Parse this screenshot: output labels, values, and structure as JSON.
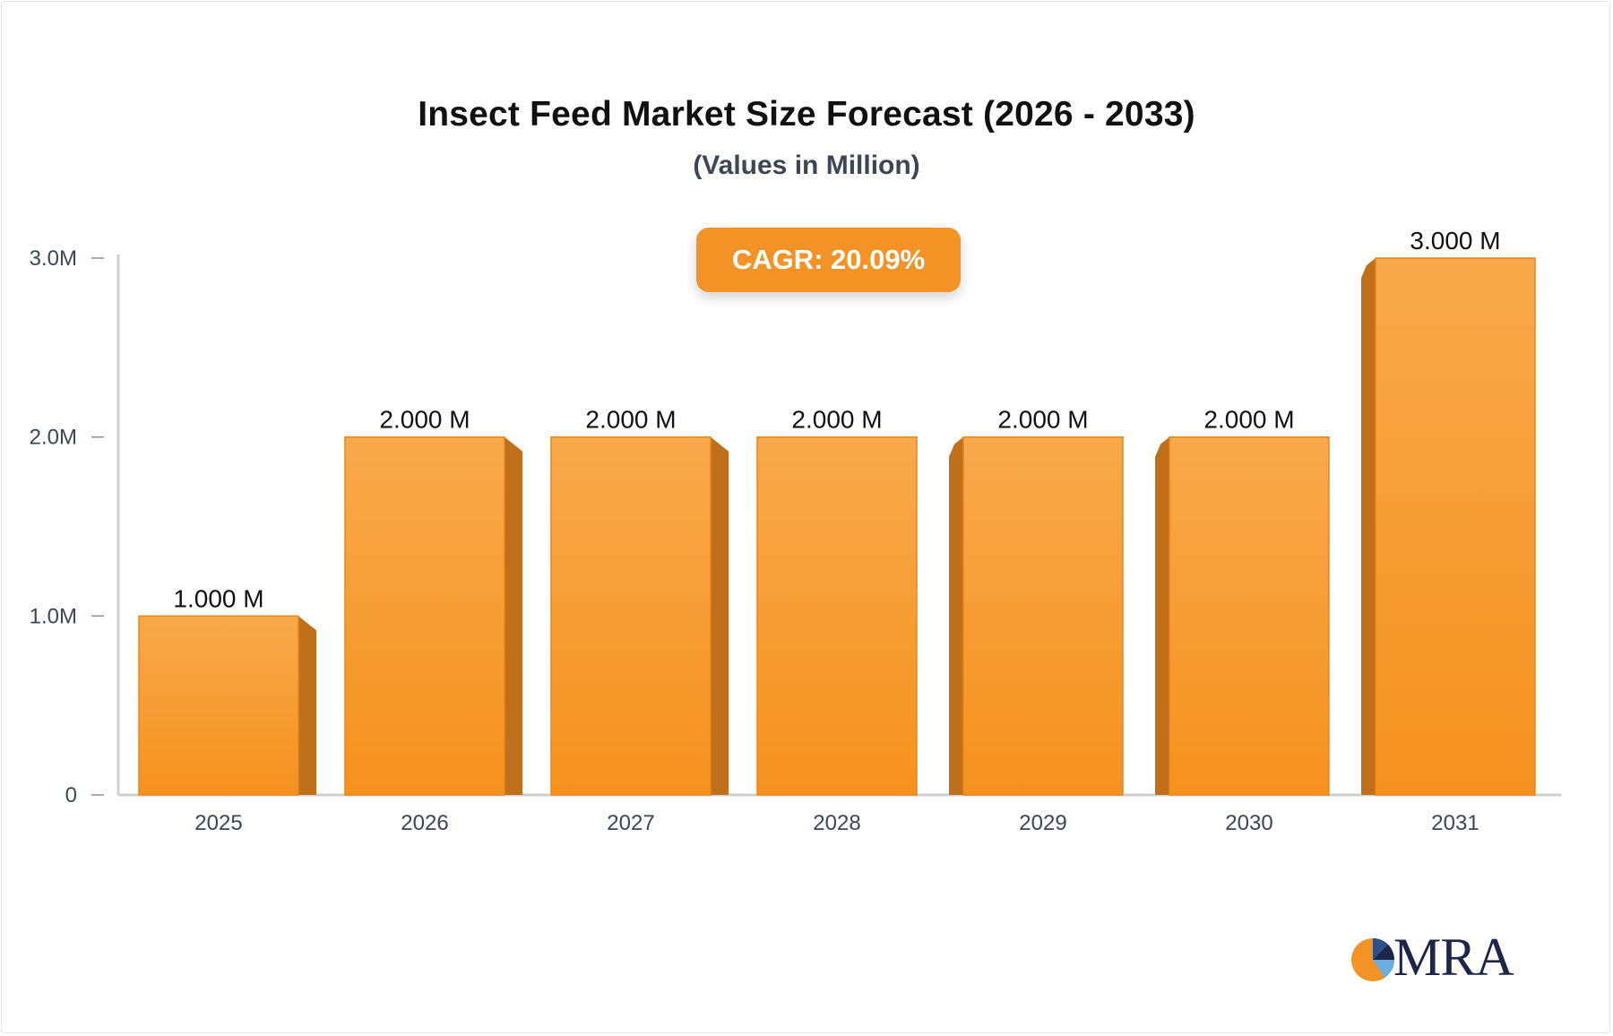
{
  "header": {
    "title": "Insect Feed Market Size Forecast (2026 - 2033)",
    "subtitle": "(Values in Million)"
  },
  "badge": {
    "cagr_label": "CAGR: 20.09%"
  },
  "logo": {
    "text": "MRA"
  },
  "colors": {
    "bar_top": "#f8a94b",
    "bar_bottom": "#f5921e",
    "bar_side": "#c06f1a",
    "bar_side_light": "#d2801f",
    "badge": "#f39326",
    "axis": "#cfcfcf",
    "tick_text": "#3b4656",
    "label_text": "#111111"
  },
  "chart_data": {
    "type": "bar",
    "categories": [
      "2025",
      "2026",
      "2027",
      "2028",
      "2029",
      "2030",
      "2031"
    ],
    "values": [
      1,
      2,
      2,
      2,
      2,
      2,
      3
    ],
    "data_labels": [
      "1.000 M",
      "2.000 M",
      "2.000 M",
      "2.000 M",
      "2.000 M",
      "2.000 M",
      "3.000 M"
    ],
    "yticks": [
      0,
      1,
      2,
      3
    ],
    "ytick_labels": [
      "0",
      "1.0M",
      "2.0M",
      "3.0M"
    ],
    "ylim": [
      0,
      3
    ],
    "title": "Insect Feed Market Size Forecast (2026 - 2033)",
    "subtitle": "(Values in Million)",
    "xlabel": "",
    "ylabel": "",
    "grid": false,
    "side_face": [
      "right",
      "right",
      "right",
      "none",
      "left",
      "left",
      "left"
    ]
  }
}
